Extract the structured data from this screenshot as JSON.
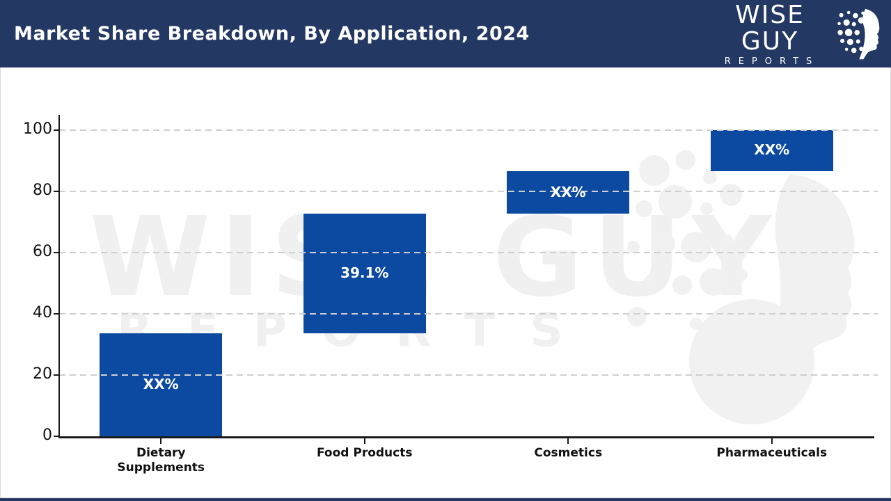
{
  "header": {
    "title": "Market Share Breakdown, By Application, 2024",
    "logo": {
      "line1": "WISE GUY",
      "line2": "REPORTS",
      "face_icon": "dotted-face-profile"
    }
  },
  "watermark": {
    "line1": "WISE GUY",
    "line2": "REPORTS"
  },
  "colors": {
    "header_bg": "#233863",
    "footer_bg": "#233863",
    "bar": "#0b4aa0",
    "bar_label": "#ffffff",
    "gridline": "#cfcfcf",
    "axis": "#1a1a1a",
    "watermark": "#f0f0f0",
    "hairline": "#d9d9d9"
  },
  "chart_data": {
    "type": "bar",
    "subtype": "floating-waterfall",
    "title": "Market Share Breakdown, By Application, 2024",
    "xlabel": "",
    "ylabel": "",
    "ylim": [
      0,
      105
    ],
    "yticks": [
      0,
      20,
      40,
      60,
      80,
      100
    ],
    "grid": "horizontal-dashed",
    "legend": "none",
    "categories": [
      "Dietary\nSupplements",
      "Food Products",
      "Cosmetics",
      "Pharmaceuticals"
    ],
    "segments": [
      {
        "category": "Dietary\nSupplements",
        "start": 0,
        "end": 33.5,
        "label": "XX%"
      },
      {
        "category": "Food Products",
        "start": 33.5,
        "end": 72.6,
        "label": "39.1%"
      },
      {
        "category": "Cosmetics",
        "start": 72.6,
        "end": 86.4,
        "label": "XX%"
      },
      {
        "category": "Pharmaceuticals",
        "start": 86.4,
        "end": 100,
        "label": "XX%"
      }
    ]
  }
}
